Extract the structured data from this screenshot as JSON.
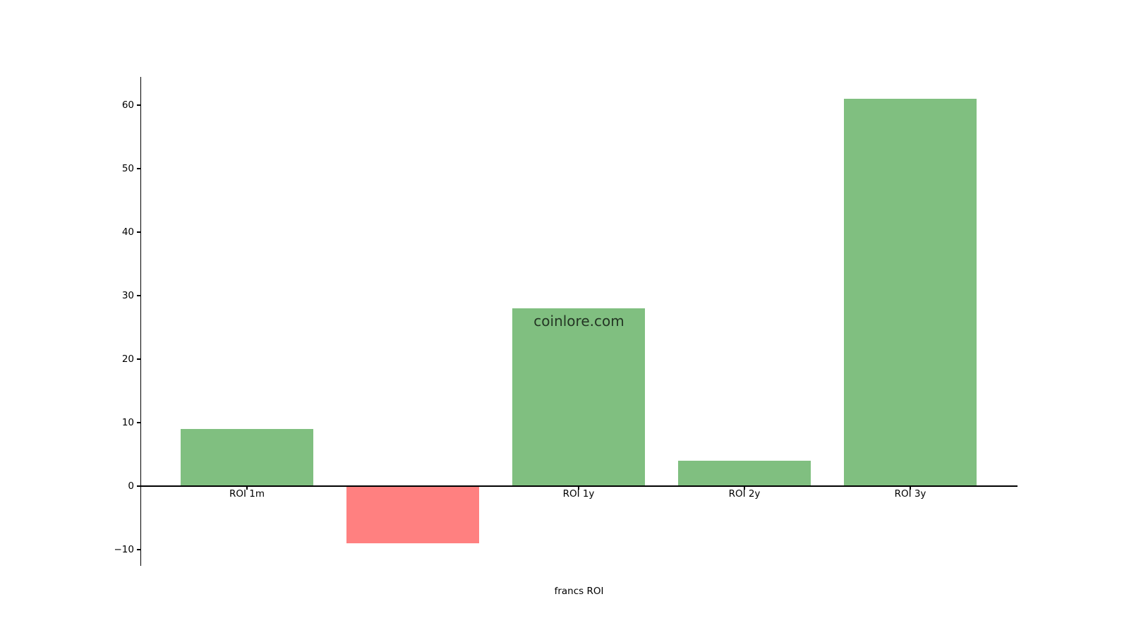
{
  "chart_data": {
    "type": "bar",
    "categories": [
      "ROI 1m",
      "",
      "ROI 1y",
      "ROI 2y",
      "ROI 3y"
    ],
    "values": [
      9,
      -9,
      28,
      4,
      61
    ],
    "xlabel": "francs ROI",
    "yticks": [
      -10,
      0,
      10,
      20,
      30,
      40,
      50,
      60
    ],
    "ylim": [
      -12.5,
      64.5
    ],
    "grid": false,
    "legend_position": "none",
    "positive_color": "#80bf80",
    "negative_color": "#ff8080",
    "note_hidden_label": ""
  },
  "watermark": {
    "text": "coinlore.com",
    "color": "#000000"
  },
  "axis": {
    "line_color": "#000000",
    "tick_text_color": "#000000"
  }
}
